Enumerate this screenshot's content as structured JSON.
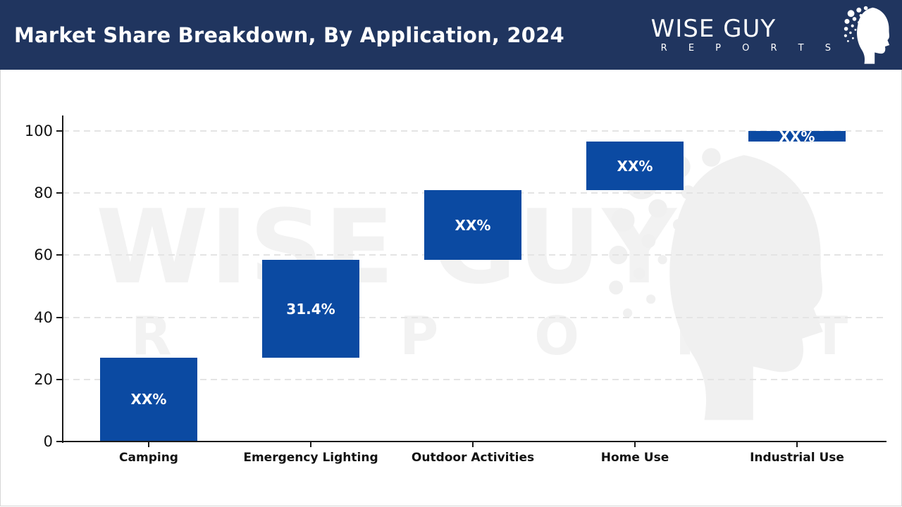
{
  "header": {
    "title": "Market Share Breakdown, By Application, 2024",
    "logo": {
      "wordmark": "WISE GUY",
      "tagline": "R E P O R T S"
    }
  },
  "watermark": {
    "wordmark": "WISE GUY",
    "tagline": "R E P O R T S"
  },
  "colors": {
    "header_bg": "#20355f",
    "bar": "#0b4aa2",
    "axis": "#1a1a1a",
    "grid": "#e4e4e4",
    "tick_text": "#111111",
    "bar_label_inside": "#ffffff",
    "bar_label_outside": "#111111",
    "watermark": "#f2f2f2",
    "border": "#d6d6d6"
  },
  "chart_data": {
    "type": "bar",
    "subtype": "waterfall",
    "title": "Market Share Breakdown, By Application, 2024",
    "xlabel": "",
    "ylabel": "",
    "categories": [
      "Camping",
      "Emergency Lighting",
      "Outdoor Activities",
      "Home Use",
      "Industrial Use"
    ],
    "bars": [
      {
        "category": "Camping",
        "start": 0,
        "end": 27,
        "label": "XX%",
        "label_placement": "inside"
      },
      {
        "category": "Emergency Lighting",
        "start": 27,
        "end": 58.4,
        "label": "31.4%",
        "label_placement": "inside"
      },
      {
        "category": "Outdoor Activities",
        "start": 58.4,
        "end": 81,
        "label": "XX%",
        "label_placement": "inside"
      },
      {
        "category": "Home Use",
        "start": 81,
        "end": 96.5,
        "label": "XX%",
        "label_placement": "inside"
      },
      {
        "category": "Industrial Use",
        "start": 96.5,
        "end": 100,
        "label": "XX%",
        "label_placement": "overflow"
      }
    ],
    "yticks": [
      0,
      20,
      40,
      60,
      80,
      100
    ],
    "ylim": [
      0,
      105
    ],
    "grid": "dashed-horizontal",
    "legend": "none"
  }
}
